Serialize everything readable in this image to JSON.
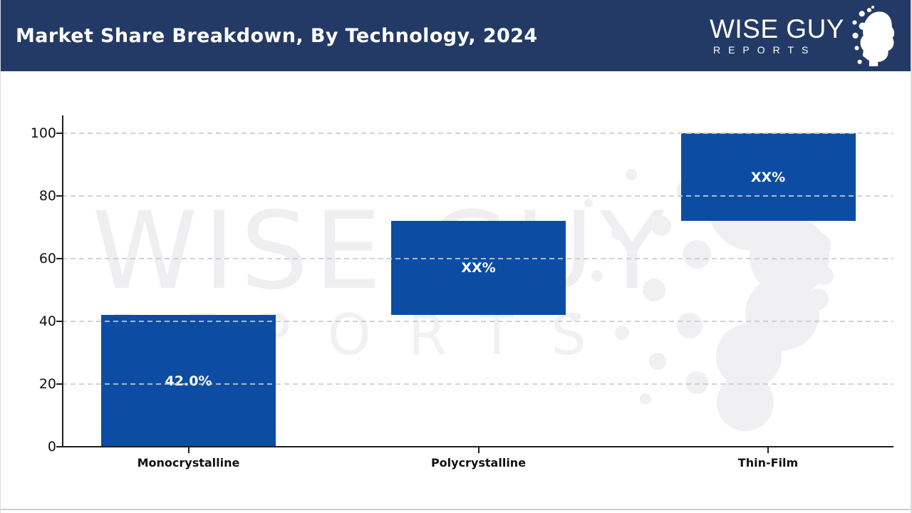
{
  "header": {
    "title": "Market Share Breakdown, By Technology, 2024",
    "logo": {
      "wordmark": "WISE GUY",
      "subtext": "REPORTS"
    }
  },
  "watermark": {
    "wordmark": "WISE GUY",
    "subtext": "REPORTS"
  },
  "colors": {
    "header_bg": "#233a66",
    "bar_fill": "#0c4da3",
    "bar_label": "#ffffff",
    "grid_line": "#cbcbcb",
    "axis_line": "#1f1f1f",
    "tick_label": "#111111",
    "background": "#ffffff"
  },
  "chart_data": {
    "type": "bar",
    "subtype": "floating-segment-breakdown",
    "title": "Market Share Breakdown, By Technology, 2024",
    "categories": [
      "Monocrystalline",
      "Polycrystalline",
      "Thin-Film"
    ],
    "segments": [
      {
        "category": "Monocrystalline",
        "start": 0,
        "end": 42,
        "label": "42.0%"
      },
      {
        "category": "Polycrystalline",
        "start": 42,
        "end": 72,
        "label": "XX%"
      },
      {
        "category": "Thin-Film",
        "start": 72,
        "end": 100,
        "label": "XX%"
      }
    ],
    "ylim": [
      0,
      100
    ],
    "yticks": [
      0,
      20,
      40,
      60,
      80,
      100
    ],
    "xlabel": "",
    "ylabel": "",
    "grid": "horizontal-dashed",
    "legend": "none"
  }
}
